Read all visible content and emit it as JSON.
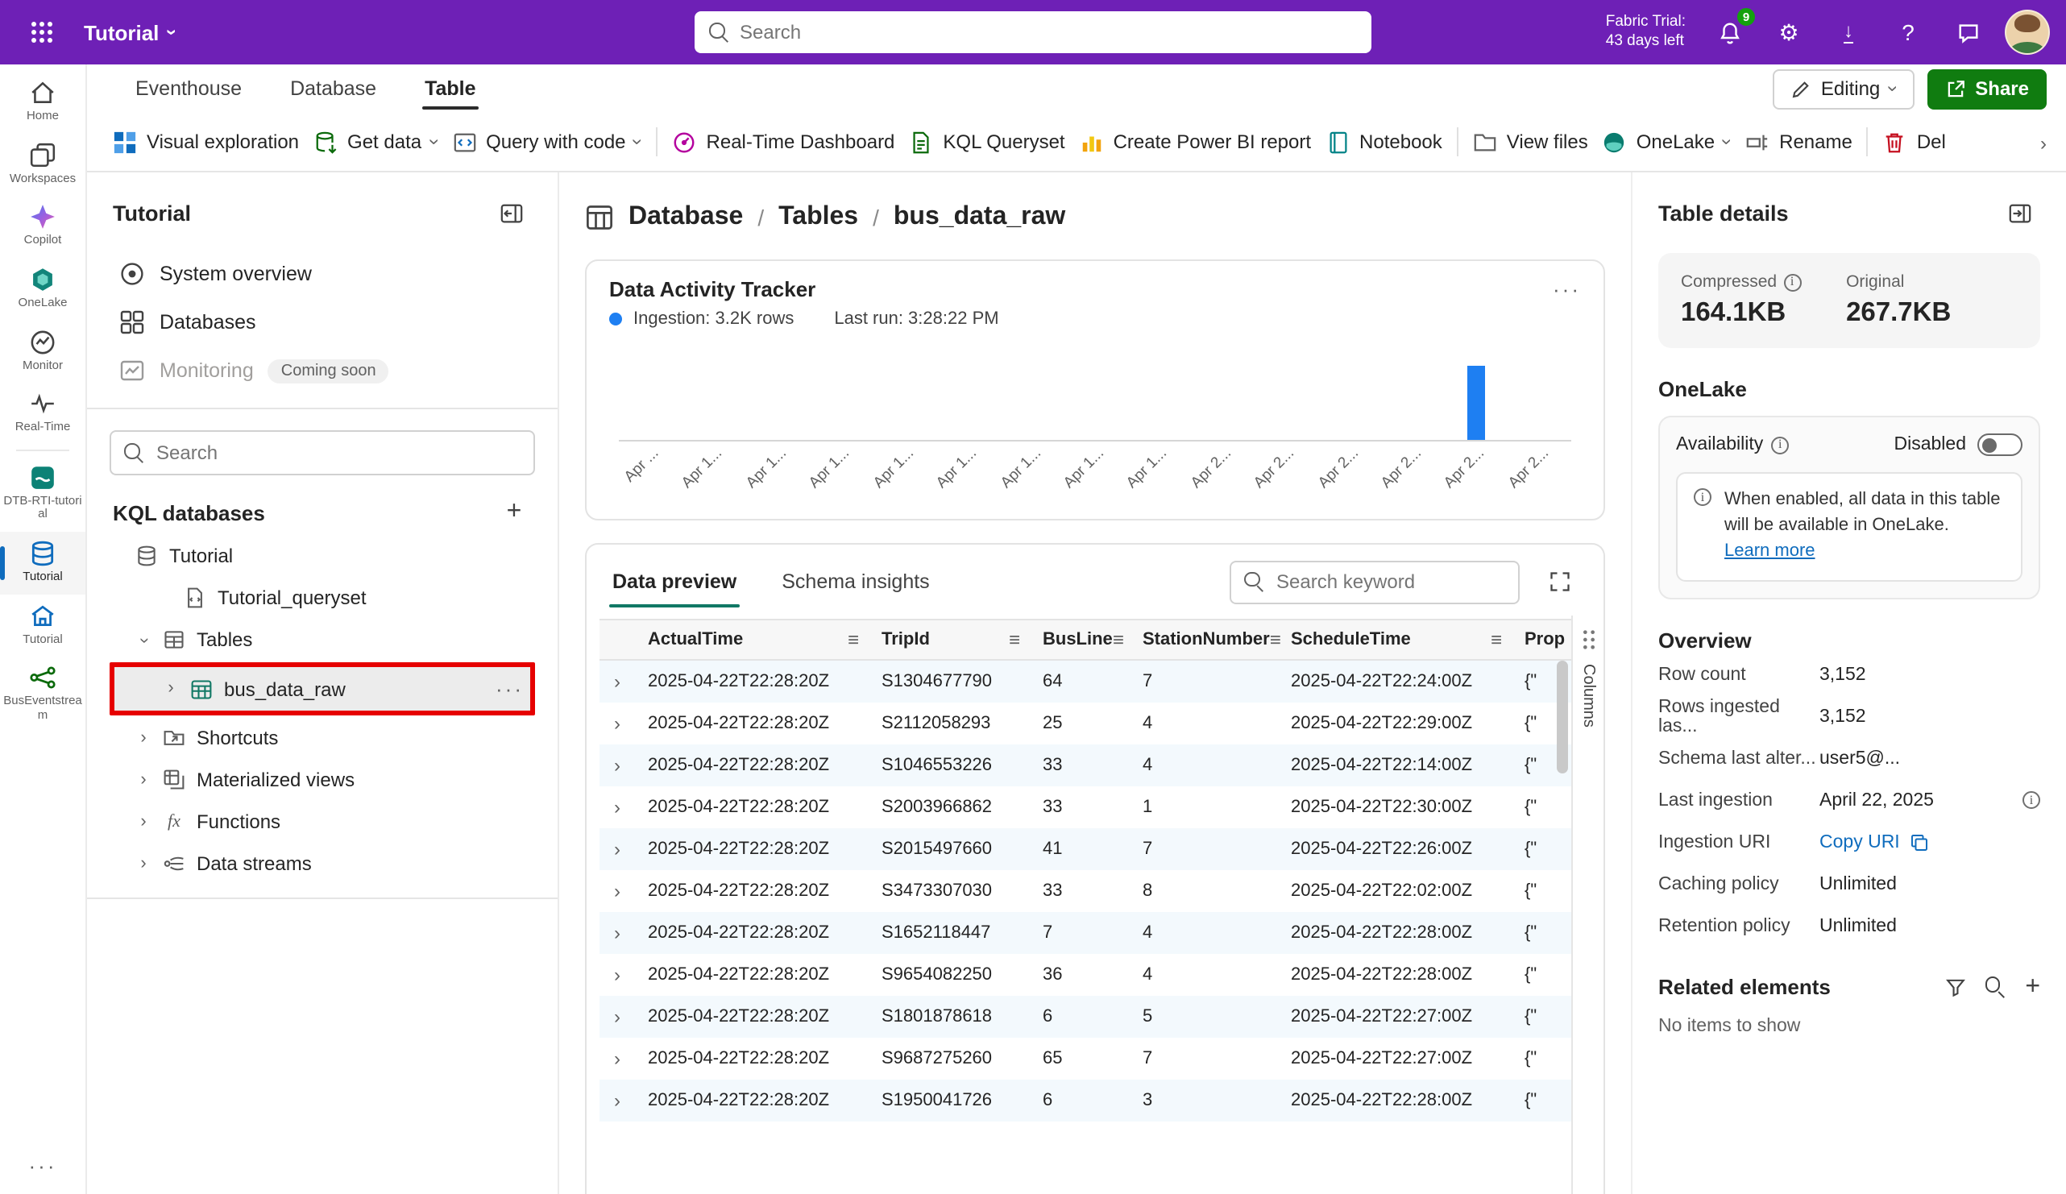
{
  "colors": {
    "topbar_bg": "#6E20B6",
    "share_green": "#107C10",
    "selection_red": "#E60000",
    "chart_bar_blue": "#1E7FF2",
    "link_blue": "#0F6CBD",
    "data_preview_underline": "#117865",
    "notification_badge_green": "#13A10E"
  },
  "icons": {
    "chevron": "›",
    "menu": "≡",
    "more": "···",
    "plus": "+",
    "gear": "⚙",
    "download": "↓",
    "help": "?",
    "separator": "/",
    "info": "i",
    "fx": "fx"
  },
  "topbar": {
    "workspace_name": "Tutorial",
    "search_placeholder": "Search",
    "trial_line1": "Fabric Trial:",
    "trial_line2": "43 days left",
    "notification_badge": "9"
  },
  "tabbar": {
    "tabs": [
      "Eventhouse",
      "Database",
      "Table"
    ],
    "active_tab": "Table",
    "editing_label": "Editing",
    "share_label": "Share"
  },
  "toolbar": {
    "visual_exploration": "Visual exploration",
    "get_data": "Get data",
    "query_with_code": "Query with code",
    "real_time_dashboard": "Real-Time Dashboard",
    "kql_queryset": "KQL Queryset",
    "create_power_bi_report": "Create Power BI report",
    "notebook": "Notebook",
    "view_files": "View files",
    "onelake": "OneLake",
    "rename": "Rename",
    "delete": "Del"
  },
  "rail": {
    "items": [
      "Home",
      "Workspaces",
      "Copilot",
      "OneLake",
      "Monitor",
      "Real-Time",
      "DTB-RTI-tutorial",
      "Tutorial",
      "Tutorial",
      "BusEventstream"
    ]
  },
  "sidebar": {
    "title": "Tutorial",
    "system_overview": "System overview",
    "databases": "Databases",
    "monitoring": "Monitoring",
    "coming_soon_badge": "Coming soon",
    "search_placeholder": "Search",
    "section_title": "KQL databases",
    "tree": {
      "database": "Tutorial",
      "queryset": "Tutorial_queryset",
      "tables": "Tables",
      "selected_table": "bus_data_raw",
      "shortcuts": "Shortcuts",
      "materialized_views": "Materialized views",
      "functions": "Functions",
      "data_streams": "Data streams"
    }
  },
  "main": {
    "breadcrumb": [
      "Database",
      "Tables",
      "bus_data_raw"
    ],
    "tracker": {
      "title": "Data Activity Tracker",
      "legend": "Ingestion: 3.2K rows",
      "last_run": "Last run: 3:28:22 PM"
    },
    "preview": {
      "tab_data_preview": "Data preview",
      "tab_schema_insights": "Schema insights",
      "search_placeholder": "Search keyword",
      "columns_label": "Columns",
      "table": {
        "headers": [
          "ActualTime",
          "TripId",
          "BusLine",
          "StationNumber",
          "ScheduleTime",
          "Prop"
        ],
        "rows": [
          {
            "actual": "2025-04-22T22:28:20Z",
            "trip": "S1304677790",
            "line": "64",
            "station": "7",
            "schedule": "2025-04-22T22:24:00Z",
            "prop": "{\""
          },
          {
            "actual": "2025-04-22T22:28:20Z",
            "trip": "S2112058293",
            "line": "25",
            "station": "4",
            "schedule": "2025-04-22T22:29:00Z",
            "prop": "{\""
          },
          {
            "actual": "2025-04-22T22:28:20Z",
            "trip": "S1046553226",
            "line": "33",
            "station": "4",
            "schedule": "2025-04-22T22:14:00Z",
            "prop": "{\""
          },
          {
            "actual": "2025-04-22T22:28:20Z",
            "trip": "S2003966862",
            "line": "33",
            "station": "1",
            "schedule": "2025-04-22T22:30:00Z",
            "prop": "{\""
          },
          {
            "actual": "2025-04-22T22:28:20Z",
            "trip": "S2015497660",
            "line": "41",
            "station": "7",
            "schedule": "2025-04-22T22:26:00Z",
            "prop": "{\""
          },
          {
            "actual": "2025-04-22T22:28:20Z",
            "trip": "S3473307030",
            "line": "33",
            "station": "8",
            "schedule": "2025-04-22T22:02:00Z",
            "prop": "{\""
          },
          {
            "actual": "2025-04-22T22:28:20Z",
            "trip": "S1652118447",
            "line": "7",
            "station": "4",
            "schedule": "2025-04-22T22:28:00Z",
            "prop": "{\""
          },
          {
            "actual": "2025-04-22T22:28:20Z",
            "trip": "S9654082250",
            "line": "36",
            "station": "4",
            "schedule": "2025-04-22T22:28:00Z",
            "prop": "{\""
          },
          {
            "actual": "2025-04-22T22:28:20Z",
            "trip": "S1801878618",
            "line": "6",
            "station": "5",
            "schedule": "2025-04-22T22:27:00Z",
            "prop": "{\""
          },
          {
            "actual": "2025-04-22T22:28:20Z",
            "trip": "S9687275260",
            "line": "65",
            "station": "7",
            "schedule": "2025-04-22T22:27:00Z",
            "prop": "{\""
          },
          {
            "actual": "2025-04-22T22:28:20Z",
            "trip": "S1950041726",
            "line": "6",
            "station": "3",
            "schedule": "2025-04-22T22:28:00Z",
            "prop": "{\""
          }
        ]
      }
    }
  },
  "details": {
    "title": "Table details",
    "stats": {
      "compressed_label": "Compressed",
      "compressed_value": "164.1KB",
      "original_label": "Original",
      "original_value": "267.7KB"
    },
    "onelake": {
      "heading": "OneLake",
      "availability_label": "Availability",
      "toggle_state": "Disabled",
      "info_text": "When enabled, all data in this table will be available in OneLake.",
      "learn_more": "Learn more"
    },
    "overview": {
      "heading": "Overview",
      "rows": [
        {
          "label": "Row count",
          "value": "3,152"
        },
        {
          "label": "Rows ingested las...",
          "value": "3,152"
        },
        {
          "label": "Schema last alter...",
          "value": "user5@..."
        },
        {
          "label": "Last ingestion",
          "value": "April 22, 2025"
        },
        {
          "label": "Ingestion URI",
          "value": "Copy URI"
        },
        {
          "label": "Caching policy",
          "value": "Unlimited"
        },
        {
          "label": "Retention policy",
          "value": "Unlimited"
        }
      ]
    },
    "related": {
      "heading": "Related elements",
      "empty_text": "No items to show"
    }
  },
  "chart_data": {
    "type": "bar",
    "title": "Data Activity Tracker",
    "categories": [
      "Apr ...",
      "Apr 1...",
      "Apr 1...",
      "Apr 1...",
      "Apr 1...",
      "Apr 1...",
      "Apr 1...",
      "Apr 1...",
      "Apr 1...",
      "Apr 2...",
      "Apr 2...",
      "Apr 2...",
      "Apr 2...",
      "Apr 2...",
      "Apr 2..."
    ],
    "series": [
      {
        "name": "Ingestion",
        "color": "#1E7FF2",
        "values": [
          0,
          0,
          0,
          0,
          0,
          0,
          0,
          0,
          0,
          0,
          0,
          0,
          0,
          3200,
          0
        ]
      }
    ],
    "legend": [
      {
        "label": "Ingestion: 3.2K rows",
        "color": "#1E7FF2"
      }
    ],
    "annotations": [
      "Last run: 3:28:22 PM"
    ],
    "xlabel": "",
    "ylabel": "",
    "ylim": [
      0,
      4000
    ],
    "grid": false,
    "legend_position": "top-left"
  }
}
